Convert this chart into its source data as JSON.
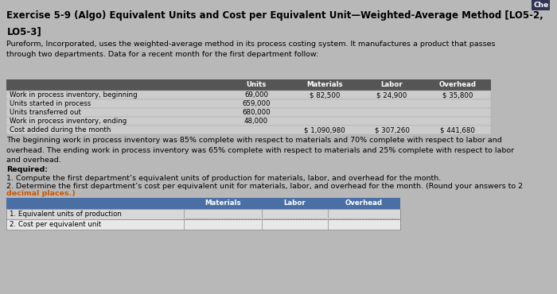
{
  "title_line1": "Exercise 5-9 (Algo) Equivalent Units and Cost per Equivalent Unit—Weighted-Average Method [LO5-2,",
  "title_line2": "LO5-3]",
  "corner_label": "Che",
  "intro_text": "Pureform, Incorporated, uses the weighted-average method in its process costing system. It manufactures a product that passes\nthrough two departments. Data for a recent month for the first department follow:",
  "table1_headers": [
    "",
    "Units",
    "Materials",
    "Labor",
    "Overhead"
  ],
  "table1_rows": [
    [
      "Work in process inventory, beginning",
      "69,000",
      "$ 82,500",
      "$ 24,900",
      "$ 35,800"
    ],
    [
      "Units started in process",
      "659,000",
      "",
      "",
      ""
    ],
    [
      "Units transferred out",
      "680,000",
      "",
      "",
      ""
    ],
    [
      "Work in process inventory, ending",
      "48,000",
      "",
      "",
      ""
    ],
    [
      "Cost added during the month",
      "",
      "$ 1,090,980",
      "$ 307,260",
      "$ 441,680"
    ]
  ],
  "middle_text": "The beginning work in process inventory was 85% complete with respect to materials and 70% complete with respect to labor and\noverhead. The ending work in process inventory was 65% complete with respect to materials and 25% complete with respect to labor\nand overhead.",
  "required_label": "Required:",
  "req_line1": "1. Compute the first department’s equivalent units of production for materials, labor, and overhead for the month.",
  "req_line2": "2. Determine the first department’s cost per equivalent unit for materials, labor, and overhead for the month. (Round your answers to 2",
  "req_line3": "decimal places.)",
  "table2_headers": [
    "",
    "Materials",
    "Labor",
    "Overhead"
  ],
  "table2_rows": [
    [
      "1. Equivalent units of production",
      "",
      "",
      ""
    ],
    [
      "2. Cost per equivalent unit",
      "",
      "",
      ""
    ]
  ],
  "bg_color": "#b8b8b8",
  "table1_header_bg": "#555555",
  "table1_row_bg": "#cccccc",
  "table2_header_bg": "#4a6fa5",
  "table2_row1_bg": "#d8d8d8",
  "table2_row2_bg": "#e8e8e8",
  "title_fontsize": 8.5,
  "body_fontsize": 6.8,
  "table_fontsize": 6.2
}
